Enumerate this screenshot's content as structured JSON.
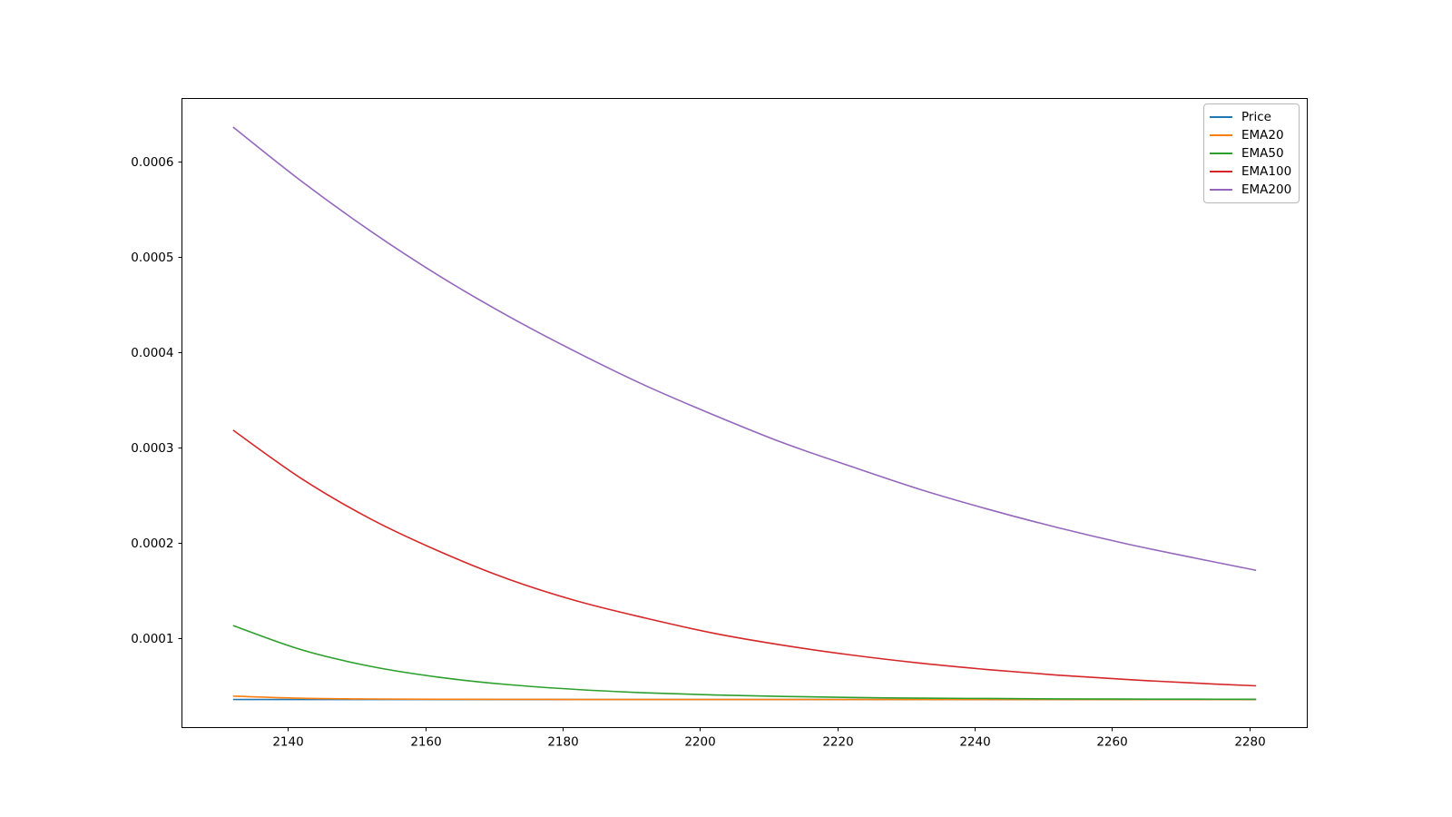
{
  "figure": {
    "background": "#ffffff",
    "axes_edge_color": "#000000",
    "tick_color": "#000000"
  },
  "chart_data": {
    "type": "line",
    "title": "",
    "xlabel": "",
    "ylabel": "",
    "grid": false,
    "xlim": [
      2124.55,
      2288.45
    ],
    "ylim": [
      6e-06,
      0.000666
    ],
    "x_ticks": [
      2140,
      2160,
      2180,
      2200,
      2220,
      2240,
      2260,
      2280
    ],
    "x_tick_labels": [
      "2140",
      "2160",
      "2180",
      "2200",
      "2220",
      "2240",
      "2260",
      "2280"
    ],
    "y_ticks": [
      0.0001,
      0.0002,
      0.0003,
      0.0004,
      0.0005,
      0.0006
    ],
    "y_tick_labels": [
      "0.0001",
      "0.0002",
      "0.0003",
      "0.0004",
      "0.0005",
      "0.0006"
    ],
    "legend": {
      "position": "upper-right",
      "entries": [
        "Price",
        "EMA20",
        "EMA50",
        "EMA100",
        "EMA200"
      ]
    },
    "x": [
      2132,
      2142,
      2152,
      2162,
      2172,
      2182,
      2192,
      2202,
      2212,
      2222,
      2232,
      2242,
      2252,
      2262,
      2272,
      2281
    ],
    "series": [
      {
        "name": "Price",
        "color": "#1f77b4",
        "values": [
          3.55e-05,
          3.55e-05,
          3.55e-05,
          3.55e-05,
          3.55e-05,
          3.55e-05,
          3.55e-05,
          3.55e-05,
          3.55e-05,
          3.55e-05,
          3.55e-05,
          3.55e-05,
          3.55e-05,
          3.55e-05,
          3.55e-05,
          3.55e-05
        ]
      },
      {
        "name": "EMA20",
        "color": "#ff7f0e",
        "values": [
          3.9e-05,
          3.68e-05,
          3.6e-05,
          3.57e-05,
          3.56e-05,
          3.55e-05,
          3.55e-05,
          3.55e-05,
          3.55e-05,
          3.55e-05,
          3.55e-05,
          3.55e-05,
          3.55e-05,
          3.55e-05,
          3.55e-05,
          3.55e-05
        ]
      },
      {
        "name": "EMA50",
        "color": "#2ca02c",
        "values": [
          0.000113,
          8.75e-05,
          7.03e-05,
          5.88e-05,
          5.11e-05,
          4.6e-05,
          4.25e-05,
          4.02e-05,
          3.87e-05,
          3.76e-05,
          3.69e-05,
          3.65e-05,
          3.61e-05,
          3.59e-05,
          3.58e-05,
          3.57e-05
        ]
      },
      {
        "name": "EMA100",
        "color": "#d62728",
        "values": [
          0.000318,
          0.000267,
          0.000225,
          0.000191,
          0.000162,
          0.000139,
          0.000121,
          0.000105,
          9.25e-05,
          8.22e-05,
          7.37e-05,
          6.68e-05,
          6.11e-05,
          5.65e-05,
          5.27e-05,
          4.98e-05
        ]
      },
      {
        "name": "EMA200",
        "color": "#9467bd",
        "values": [
          0.000636,
          0.000579,
          0.000527,
          0.00048,
          0.000438,
          0.0004,
          0.000365,
          0.000334,
          0.000305,
          0.00028,
          0.000256,
          0.000235,
          0.000216,
          0.000199,
          0.000184,
          0.000171
        ]
      }
    ]
  }
}
